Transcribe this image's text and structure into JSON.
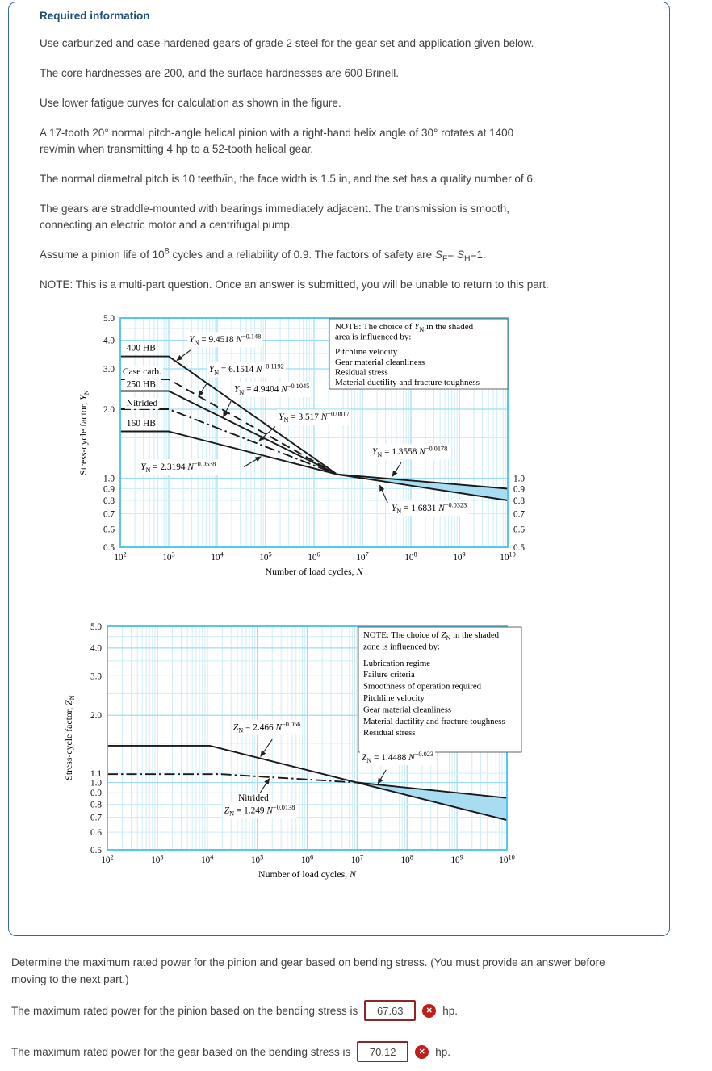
{
  "header": {
    "title": "Required information"
  },
  "paragraphs": [
    "Use carburized and case-hardened gears of grade 2 steel for the gear set and application given below.",
    "The core hardnesses are 200, and the surface hardnesses are 600 Brinell.",
    "Use lower fatigue curves for calculation as shown in the figure.",
    "A 17-tooth 20° normal pitch-angle helical pinion with a right-hand helix angle of 30° rotates at 1400\nrev/min when transmitting 4 hp to a 52-tooth helical gear.",
    "The normal diametral pitch is 10 teeth/in, the face width is 1.5 in, and the set has a quality number of 6.",
    "The gears are straddle-mounted with bearings immediately adjacent. The transmission is smooth,\nconnecting an electric motor and a centrifugal pump.",
    "Assume a pinion life of 10^{8} cycles and a reliability of 0.9. The factors of safety are *S*_{F}= *S*_{H}=1.",
    "NOTE: This is a multi-part question. Once an answer is submitted, you will be unable to return to this part."
  ],
  "assessment": {
    "prompt": "Determine the maximum rated power for the pinion and gear based on bending stress. (You must provide an answer before\nmoving to the next part.)",
    "pinion_label": "The maximum rated power for the pinion based on the bending stress is",
    "pinion_value": "67.63",
    "gear_label": "The maximum rated power for the gear based on the bending stress is",
    "gear_value": "70.12",
    "unit": "hp.",
    "incorrect_icon_glyph": "✕"
  },
  "colors": {
    "card_border": "#34679a",
    "heading_blue": "#1e4e79",
    "grid_minor": "#cdedf8",
    "grid_major": "#9edcf2",
    "plot_border": "#45c2e8",
    "shade": "#a8ddf1",
    "curve": "#1a1a1a",
    "answer_box_border": "#8e2626",
    "error_red": "#bf1f1c"
  },
  "chart_data": [
    {
      "type": "line",
      "id": "YN-bending",
      "xlabel": "Number of load cycles, *N*",
      "ylabel": "Stress-cycle factor, *Y*_{N}",
      "x_scale": "log",
      "y_scale": "log",
      "x_exp_range": [
        2,
        10
      ],
      "ylim": [
        0.5,
        5.0
      ],
      "x_ticks_exp": [
        2,
        3,
        4,
        5,
        6,
        7,
        8,
        9,
        10
      ],
      "y_ticks": [
        5.0,
        4.0,
        3.0,
        2.0,
        1.0,
        0.9,
        0.8,
        0.7,
        0.6,
        0.5
      ],
      "y_ticks_right": [
        1.0,
        0.9,
        0.8,
        0.7,
        0.6,
        0.5
      ],
      "y_grid_major": [
        1,
        2,
        3,
        4,
        5
      ],
      "y_grid_minor": [
        0.6,
        0.7,
        0.8,
        0.9,
        1.5,
        2.5,
        3.5,
        4.5
      ],
      "curves": [
        {
          "name": "400 HB",
          "equation": "YN = 9.4518 N^-0.148",
          "dash": "solid",
          "segments": [
            {
              "a": 3.4,
              "b": 0,
              "from": 2,
              "to": 3
            },
            {
              "a": 9.4518,
              "b": -0.148,
              "from": 3,
              "to": 6.45
            }
          ]
        },
        {
          "name": "Case carb.",
          "equation": "YN = 6.1514 N^-0.1192",
          "dash": "dashed",
          "segments": [
            {
              "a": 2.7,
              "b": 0,
              "from": 2,
              "to": 3
            },
            {
              "a": 6.1514,
              "b": -0.1192,
              "from": 3,
              "to": 6.45
            }
          ]
        },
        {
          "name": "250 HB",
          "equation": "YN = 4.9404 N^-0.1045",
          "dash": "solid",
          "segments": [
            {
              "a": 2.4,
              "b": 0,
              "from": 2,
              "to": 3
            },
            {
              "a": 4.9404,
              "b": -0.1045,
              "from": 3,
              "to": 6.45
            }
          ]
        },
        {
          "name": "Nitrided",
          "equation": "YN = 3.517 N^-0.0817",
          "dash": "dashdot",
          "segments": [
            {
              "a": 2.0,
              "b": 0,
              "from": 2,
              "to": 3
            },
            {
              "a": 3.517,
              "b": -0.0817,
              "from": 3,
              "to": 6.45
            }
          ]
        },
        {
          "name": "160 HB",
          "equation": "YN = 2.3194 N^-0.0538",
          "dash": "solid",
          "segments": [
            {
              "a": 1.6,
              "b": 0,
              "from": 2,
              "to": 3
            },
            {
              "a": 2.3194,
              "b": -0.0538,
              "from": 3,
              "to": 6.45
            }
          ]
        },
        {
          "name": "upper branch",
          "equation": "YN = 1.3558 N^-0.0178",
          "dash": "solid",
          "segments": [
            {
              "a": 1.3558,
              "b": -0.0178,
              "from": 6.45,
              "to": 10
            }
          ]
        },
        {
          "name": "lower branch",
          "equation": "YN = 1.6831 N^-0.0323",
          "dash": "solid",
          "segments": [
            {
              "a": 1.6831,
              "b": -0.0323,
              "from": 6.45,
              "to": 10
            }
          ]
        }
      ],
      "shade": {
        "upper_a": 1.3558,
        "upper_b": -0.0178,
        "lower_a": 1.6831,
        "lower_b": -0.0323,
        "from": 6.45,
        "to": 10
      },
      "curve_labels": [
        {
          "text": "400 HB",
          "L": 2.13,
          "Y": 3.6
        },
        {
          "text": "Case carb.",
          "L": 2.05,
          "Y": 2.83
        },
        {
          "text": "250 HB",
          "L": 2.13,
          "Y": 2.5
        },
        {
          "text": "Nitrided",
          "L": 2.13,
          "Y": 2.07
        },
        {
          "text": "160 HB",
          "L": 2.13,
          "Y": 1.69
        }
      ],
      "eq_labels": [
        {
          "text": "*Y*_{N} = 9.4518 *N*^{−0.148}",
          "L": 3.42,
          "Y": 3.92,
          "arrow": [
            3.45,
            3.62,
            3.17,
            3.27
          ]
        },
        {
          "text": "*Y*_{N} = 6.1514 *N*^{−0.1192}",
          "L": 3.83,
          "Y": 2.9,
          "arrow": [
            3.8,
            2.62,
            3.62,
            2.28
          ]
        },
        {
          "text": "*Y*_{N} = 4.9404 *N*^{−0.1045}",
          "L": 4.35,
          "Y": 2.38,
          "arrow": [
            4.3,
            2.2,
            4.13,
            1.85
          ]
        },
        {
          "text": "*Y*_{N} = 3.517 *N*^{−0.0817}",
          "L": 5.27,
          "Y": 1.8,
          "arrow": [
            5.2,
            1.68,
            4.87,
            1.46
          ]
        },
        {
          "text": "*Y*_{N} = 2.3194 *N*^{−0.0538}",
          "L": 2.42,
          "Y": 1.09,
          "arrow": [
            4.55,
            1.12,
            4.9,
            1.24
          ]
        },
        {
          "text": "*Y*_{N} = 1.3558 *N*^{−0.0178}",
          "L": 7.2,
          "Y": 1.27,
          "arrow": [
            7.8,
            1.17,
            7.62,
            1.02
          ]
        },
        {
          "text": "*Y*_{N} = 1.6831 *N*^{−0.0323}",
          "L": 7.6,
          "Y": 0.72,
          "arrow": [
            7.52,
            0.78,
            7.36,
            0.93
          ]
        }
      ],
      "note": {
        "heading": [
          "NOTE:   The choice of *Y*_{N} in the shaded",
          "area is influenced by:"
        ],
        "items": [
          "Pitchline velocity",
          "Gear material cleanliness",
          "Residual stress",
          "Material ductility and fracture toughness"
        ]
      }
    },
    {
      "type": "line",
      "id": "ZN-pitting",
      "xlabel": "Number of load cycles, *N*",
      "ylabel": "Stress-cycle factor, *Z*_{N}",
      "x_scale": "log",
      "y_scale": "log",
      "x_exp_range": [
        2,
        10
      ],
      "ylim": [
        0.5,
        5.0
      ],
      "x_ticks_exp": [
        2,
        3,
        4,
        5,
        6,
        7,
        8,
        9,
        10
      ],
      "y_ticks": [
        5.0,
        4.0,
        3.0,
        2.0,
        1.1,
        1.0,
        0.9,
        0.8,
        0.7,
        0.6,
        0.5
      ],
      "y_ticks_right": [],
      "y_grid_major": [
        1,
        2,
        3,
        4,
        5
      ],
      "y_grid_minor": [
        0.6,
        0.7,
        0.8,
        0.9,
        1.1,
        1.5,
        2.5,
        3.5,
        4.5
      ],
      "curves": [
        {
          "name": "carburized / through-hardened",
          "equation": "ZN = 2.466 N^-0.056",
          "dash": "solid",
          "segments": [
            {
              "a": 1.462,
              "b": 0,
              "from": 2,
              "to": 4.05
            },
            {
              "a": 2.466,
              "b": -0.056,
              "from": 4.05,
              "to": 10
            }
          ]
        },
        {
          "name": "upper branch",
          "equation": "ZN = 1.4488 N^-0.023",
          "dash": "solid",
          "segments": [
            {
              "a": 1.4488,
              "b": -0.023,
              "from": 7.0,
              "to": 10
            }
          ]
        },
        {
          "name": "Nitrided",
          "equation": "ZN = 1.249 N^-0.0138",
          "dash": "dashdot",
          "segments": [
            {
              "a": 1.09,
              "b": 0,
              "from": 2,
              "to": 4.2
            },
            {
              "a": 1.249,
              "b": -0.0138,
              "from": 4.2,
              "to": 7.1
            }
          ]
        }
      ],
      "shade": {
        "upper_a": 1.4488,
        "upper_b": -0.023,
        "lower_a": 2.466,
        "lower_b": -0.056,
        "from": 7.0,
        "to": 10
      },
      "curve_labels": [],
      "eq_labels": [
        {
          "text": "*Z*_{N} = 2.466 *N*^{−0.056}",
          "L": 4.52,
          "Y": 1.72,
          "arrow": [
            5.3,
            1.56,
            5.07,
            1.31
          ]
        },
        {
          "text": "*Z*_{N} = 1.4488 *N*^{−0.023}",
          "L": 7.09,
          "Y": 1.26,
          "arrow": [
            7.58,
            1.14,
            7.42,
            0.99
          ]
        },
        {
          "text": "Nitrided",
          "L": 4.62,
          "Y": 0.83,
          "arrow": [
            5.0,
            0.86,
            5.24,
            1.04
          ]
        },
        {
          "text": "*Z*_{N} = 1.249 *N*^{−0.0138}",
          "L": 4.34,
          "Y": 0.73
        }
      ],
      "note": {
        "heading": [
          "NOTE:   The choice of *Z*_{N} in the shaded",
          "zone is influenced by:"
        ],
        "items": [
          "Lubrication regime",
          "Failure criteria",
          "Smoothness of operation required",
          "Pitchline velocity",
          "Gear material cleanliness",
          "Material ductility and fracture toughness",
          "Residual stress"
        ]
      }
    }
  ]
}
